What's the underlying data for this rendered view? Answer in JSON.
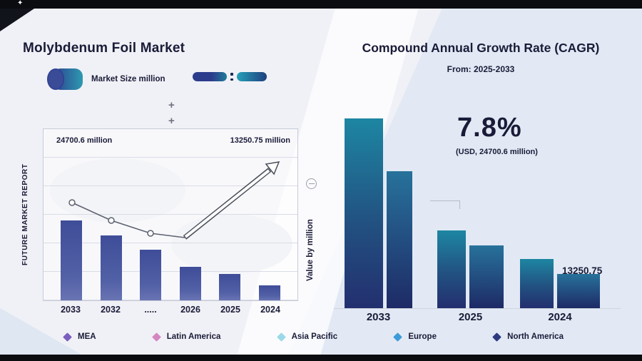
{
  "meta": {
    "background": "#f0f1f6",
    "accent_navy": "#2c3c8c",
    "accent_teal": "#1f85a0",
    "text_color": "#1a1b38"
  },
  "header": {
    "left_title": "Molybdenum Foil Market",
    "right_title": "Compound Annual Growth Rate (CAGR)",
    "right_subtitle": "From: 2025-2033"
  },
  "legend_top": {
    "label": "Market Size million"
  },
  "left_chart": {
    "annotation_left": "24700.6 million",
    "annotation_right": "13250.75 million",
    "side_label": "FUTURE MARKET REPORT"
  },
  "middle": {
    "value_axis_label": "Value by million"
  },
  "cagr": {
    "value": "7.8%",
    "note": "(USD, 24700.6 million)"
  },
  "right_chart": {
    "callout": "13250.75"
  },
  "decor": {
    "plus": "+",
    "sparkle": "✦"
  },
  "bottom_legend": [
    {
      "label": "MEA",
      "color": "#7a5fc0"
    },
    {
      "label": "Latin America",
      "color": "#d486c2"
    },
    {
      "label": "Asia Pacific",
      "color": "#9bd9e8"
    },
    {
      "label": "Europe",
      "color": "#3e9bd9"
    },
    {
      "label": "North America",
      "color": "#2c3a80"
    }
  ],
  "chart_data": [
    {
      "type": "bar",
      "title": "Molybdenum Foil Market - Market Size million",
      "categories": [
        "2033",
        "2032",
        ".....",
        "2026",
        "2025",
        "2024"
      ],
      "values_relative": [
        1.0,
        0.81,
        0.63,
        0.42,
        0.33,
        0.19
      ],
      "labeled_values": {
        "2033": 24700.6,
        "2024": 13250.75
      },
      "ylabel": "Value by million",
      "legend": "Market Size million",
      "grid": true
    },
    {
      "type": "bar",
      "title": "Compound Annual Growth Rate (CAGR) From: 2025-2033",
      "categories": [
        "2033",
        "2025",
        "2024"
      ],
      "series": [
        {
          "name": "series-1",
          "values_relative": [
            1.0,
            0.41,
            0.26
          ]
        },
        {
          "name": "series-2",
          "values_relative": [
            0.72,
            0.33,
            0.18
          ]
        }
      ],
      "labeled_values": {
        "2024": 13250.75
      },
      "cagr_percent": 7.8,
      "cagr_base_usd_million": 24700.6
    }
  ]
}
